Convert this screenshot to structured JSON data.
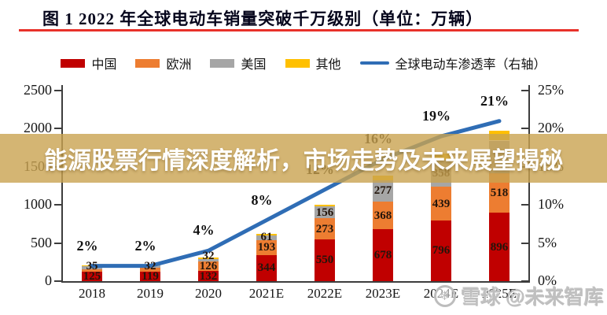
{
  "figure": {
    "title": "图 1 2022 年全球电动车销量突破千万级别（单位：万辆）",
    "rule_color": "#e8312a"
  },
  "overlay_banner": {
    "text": "能源股票行情深度解析，市场走势及未来展望揭秘",
    "bg_color": "#c9a250",
    "text_color": "#ffffff"
  },
  "watermark": {
    "logo_icon": "snowflake-circle-icon",
    "logo_glyph": "❄",
    "site": "雪球",
    "handle": "@未来智库"
  },
  "chart_data": {
    "type": "bar",
    "subtype": "stacked-bars-with-line-overlay",
    "title": "2022 年全球电动车销量突破千万级别",
    "unit": "万辆",
    "grid": "off",
    "legend_position": "top",
    "categories": [
      "2018",
      "2019",
      "2020",
      "2021E",
      "2022E",
      "2023E",
      "2024E",
      "2025E"
    ],
    "series": [
      {
        "key": "china",
        "name": "中国",
        "color": "#c00000",
        "values": [
          125,
          119,
          132,
          344,
          550,
          678,
          796,
          896
        ],
        "labels": [
          "125",
          "119",
          "132",
          "344",
          "550",
          "678",
          "796",
          "896"
        ]
      },
      {
        "key": "europe",
        "name": "欧洲",
        "color": "#ed7d31",
        "values": [
          35,
          55,
          126,
          193,
          273,
          368,
          439,
          518
        ],
        "labels": [
          "35",
          null,
          "126",
          "193",
          "273",
          "368",
          "439",
          "518"
        ]
      },
      {
        "key": "us",
        "name": "美国",
        "color": "#a6a6a6",
        "values": [
          36,
          32,
          32,
          61,
          156,
          277,
          358,
          430
        ],
        "labels": [
          null,
          "32",
          "32",
          "61",
          "156",
          "277",
          "358",
          null
        ]
      },
      {
        "key": "other",
        "name": "其他",
        "color": "#ffc000",
        "values": [
          10,
          10,
          15,
          20,
          25,
          60,
          80,
          130
        ],
        "labels": [
          null,
          null,
          null,
          null,
          null,
          null,
          null,
          null
        ]
      }
    ],
    "line_series": {
      "name": "全球电动车渗透率（右轴）",
      "color": "#2f6db5",
      "values": [
        2,
        2,
        4,
        8,
        12,
        16,
        19,
        21
      ],
      "labels": [
        "2%",
        "2%",
        "4%",
        "8%",
        "12%",
        "16%",
        "19%",
        "21%"
      ]
    },
    "left_axis": {
      "max": 2500,
      "ticks": [
        {
          "label": "0",
          "value": 0
        },
        {
          "label": "500",
          "value": 500
        },
        {
          "label": "1000",
          "value": 1000
        },
        {
          "label": "1500",
          "value": 1500
        },
        {
          "label": "2000",
          "value": 2000
        },
        {
          "label": "2500",
          "value": 2500
        }
      ]
    },
    "right_axis": {
      "max": 25,
      "ticks": [
        {
          "label": "0%",
          "value": 0
        },
        {
          "label": "5%",
          "value": 5
        },
        {
          "label": "10%",
          "value": 10
        },
        {
          "label": "15%",
          "value": 15
        },
        {
          "label": "20%",
          "value": 20
        },
        {
          "label": "25%",
          "value": 25
        }
      ]
    },
    "legend": [
      {
        "label": "中国",
        "color": "#c00000",
        "type": "swatch"
      },
      {
        "label": "欧洲",
        "color": "#ed7d31",
        "type": "swatch"
      },
      {
        "label": "美国",
        "color": "#a6a6a6",
        "type": "swatch"
      },
      {
        "label": "其他",
        "color": "#ffc000",
        "type": "swatch"
      },
      {
        "label": "全球电动车渗透率（右轴）",
        "color": "#2f6db5",
        "type": "line"
      }
    ]
  }
}
